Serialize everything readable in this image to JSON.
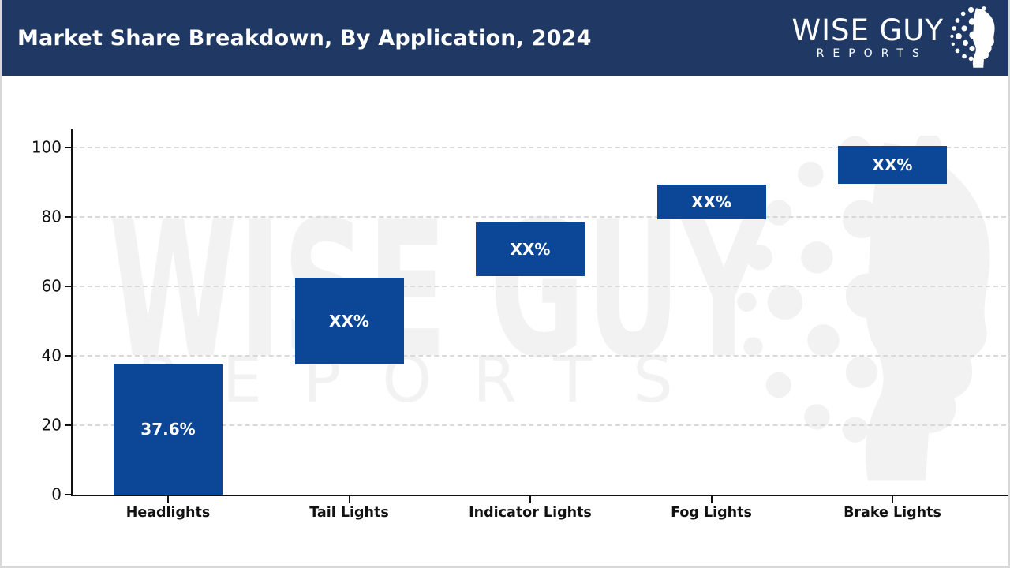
{
  "header": {
    "title": "Market Share Breakdown, By Application, 2024",
    "logo": {
      "wordmark": "WISE GUY",
      "sub": "REPORTS"
    }
  },
  "watermark": {
    "wordmark": "WISE GUY",
    "sub": "REPORTS"
  },
  "colors": {
    "header_bg": "#1F3864",
    "bar": "#0B4796",
    "bar_label": "#FFFFFF",
    "watermark": "#F2F2F2",
    "grid": "#D9D9D9",
    "axis": "#111111",
    "page_border": "#D8D8D8"
  },
  "chart_data": {
    "type": "bar",
    "subtype": "waterfall",
    "title": "Market Share Breakdown, By Application, 2024",
    "categories": [
      "Headlights",
      "Tail Lights",
      "Indicator Lights",
      "Fog Lights",
      "Brake Lights"
    ],
    "segments": [
      {
        "category": "Headlights",
        "start": 0,
        "end": 37.6,
        "label": "37.6%"
      },
      {
        "category": "Tail Lights",
        "start": 37.6,
        "end": 62.5,
        "label": "XX%"
      },
      {
        "category": "Indicator Lights",
        "start": 63.0,
        "end": 78.5,
        "label": "XX%"
      },
      {
        "category": "Fog Lights",
        "start": 79.3,
        "end": 89.3,
        "label": "XX%"
      },
      {
        "category": "Brake Lights",
        "start": 89.5,
        "end": 100.4,
        "label": "XX%"
      }
    ],
    "y_ticks": [
      0,
      20,
      40,
      60,
      80,
      100
    ],
    "ylim": [
      0,
      105
    ],
    "xlabel": "",
    "ylabel": "",
    "grid": "dashed-horizontal",
    "legend": "none"
  }
}
